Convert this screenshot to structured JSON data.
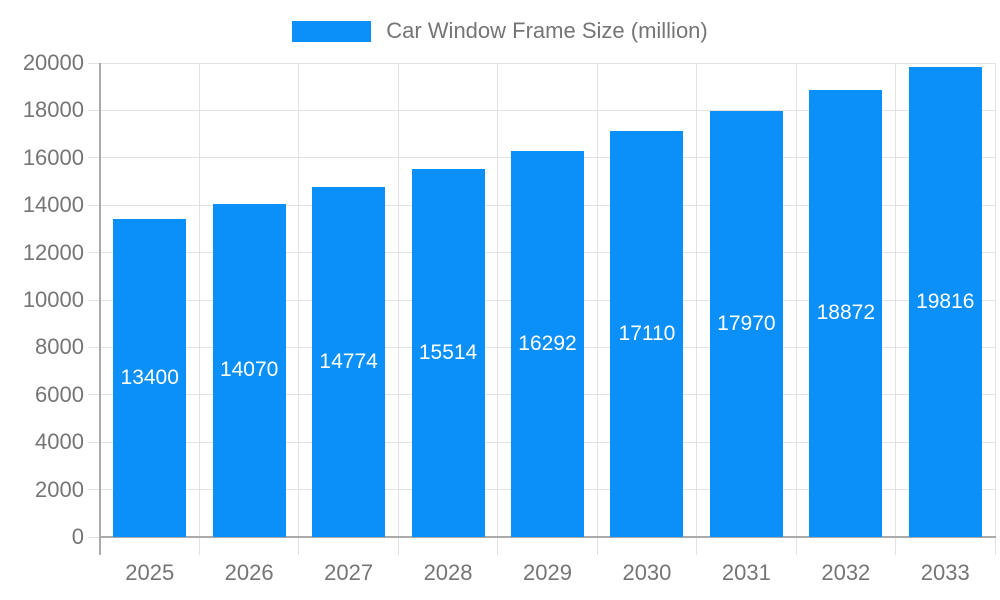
{
  "chart_data": {
    "type": "bar",
    "title": "Car Window Frame Size (million)",
    "legend_position": "top-center",
    "categories": [
      "2025",
      "2026",
      "2027",
      "2028",
      "2029",
      "2030",
      "2031",
      "2032",
      "2033"
    ],
    "values": [
      13400,
      14070,
      14774,
      15514,
      16292,
      17110,
      17970,
      18872,
      19816
    ],
    "bar_value_labels": [
      "13400",
      "14070",
      "14774",
      "15514",
      "16292",
      "17110",
      "17970",
      "18872",
      "19816"
    ],
    "xlabel": "",
    "ylabel": "",
    "ylim": [
      0,
      20000
    ],
    "ytick_labels": [
      "0",
      "2000",
      "4000",
      "6000",
      "8000",
      "10000",
      "12000",
      "14000",
      "16000",
      "18000",
      "20000"
    ],
    "grid": true,
    "colors": {
      "bar": "#0a90f8",
      "bar_value_text": "#ffffff",
      "axis_text": "#757575",
      "legend_text": "#757575",
      "axis_line": "#aaaaaa",
      "gridline": "#e2e2e2",
      "background": "#ffffff"
    }
  }
}
